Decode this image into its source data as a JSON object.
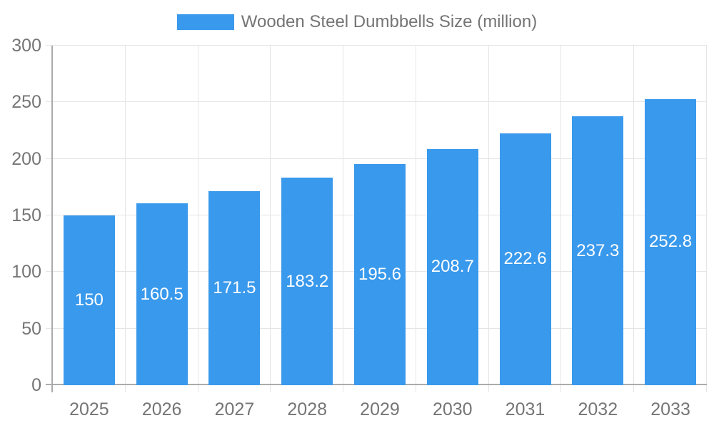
{
  "legend": {
    "label": "Wooden Steel Dumbbells Size (million)"
  },
  "colors": {
    "bar": "#3999EC",
    "grid": "#E5E5E5",
    "axis": "#ABABAB",
    "tick_label": "#757575",
    "bar_label": "#FFFFFF"
  },
  "chart_data": {
    "type": "bar",
    "title": "Wooden Steel Dumbbells Size (million)",
    "legend_entries": [
      "Wooden Steel Dumbbells Size (million)"
    ],
    "legend_position": "top",
    "categories": [
      "2025",
      "2026",
      "2027",
      "2028",
      "2029",
      "2030",
      "2031",
      "2032",
      "2033"
    ],
    "values": [
      150,
      160.5,
      171.5,
      183.2,
      195.6,
      208.7,
      222.6,
      237.3,
      252.8
    ],
    "xlabel": "",
    "ylabel": "",
    "ylim": [
      0,
      300
    ],
    "yticks": [
      0,
      50,
      100,
      150,
      200,
      250,
      300
    ],
    "grid": true,
    "value_labels": "inside-center"
  }
}
